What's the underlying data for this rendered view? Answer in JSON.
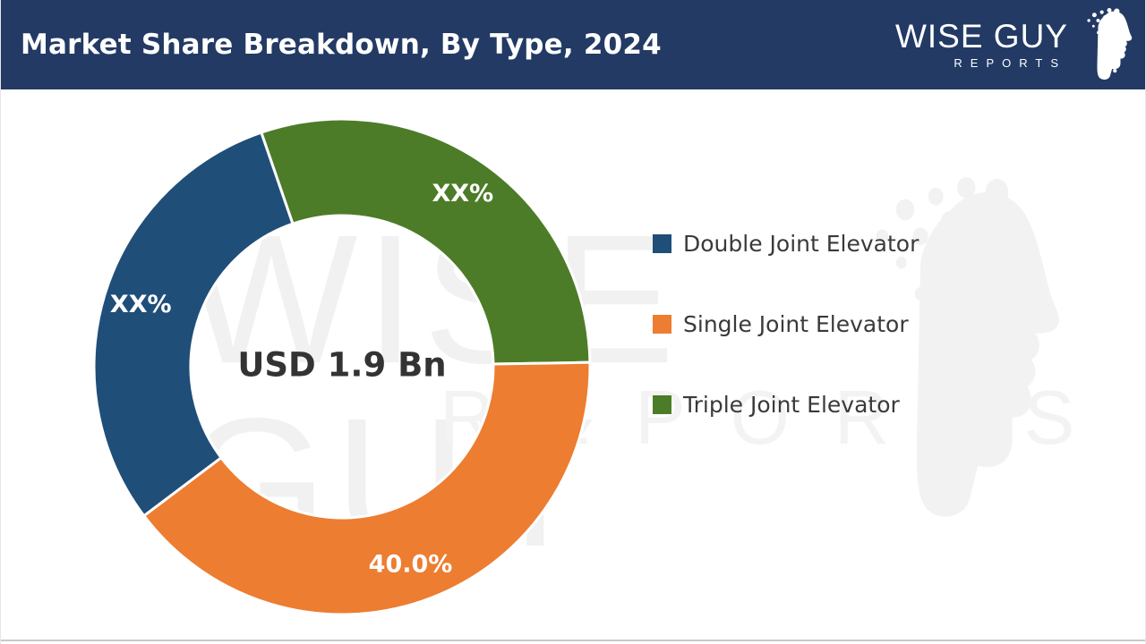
{
  "header": {
    "title": "Market Share Breakdown, By Type, 2024",
    "bg_color": "#223a64",
    "logo": {
      "line1": "WISE GUY",
      "line2": "REPORTS"
    }
  },
  "watermark": {
    "line1": "WISE GUY",
    "line2": "REPORTS"
  },
  "chart_data": {
    "type": "pie",
    "subtype": "donut",
    "title": "Market Share Breakdown, By Type, 2024",
    "center_label": "USD 1.9 Bn",
    "direction": "clockwise",
    "start_angle_deg": -19,
    "inner_radius_ratio": 0.61,
    "segments": [
      {
        "name": "Triple Joint Elevator",
        "label": "XX%",
        "value_pct": 30,
        "color": "#4d7c28"
      },
      {
        "name": "Single Joint Elevator",
        "label": "40.0%",
        "value_pct": 40,
        "color": "#ed7d31"
      },
      {
        "name": "Double Joint Elevator",
        "label": "XX%",
        "value_pct": 30,
        "color": "#1f4e79"
      }
    ],
    "legend": {
      "position": "right",
      "items": [
        {
          "label": "Double Joint Elevator",
          "color": "#1f4e79"
        },
        {
          "label": "Single Joint Elevator",
          "color": "#ed7d31"
        },
        {
          "label": "Triple Joint Elevator",
          "color": "#4d7c28"
        }
      ]
    }
  }
}
